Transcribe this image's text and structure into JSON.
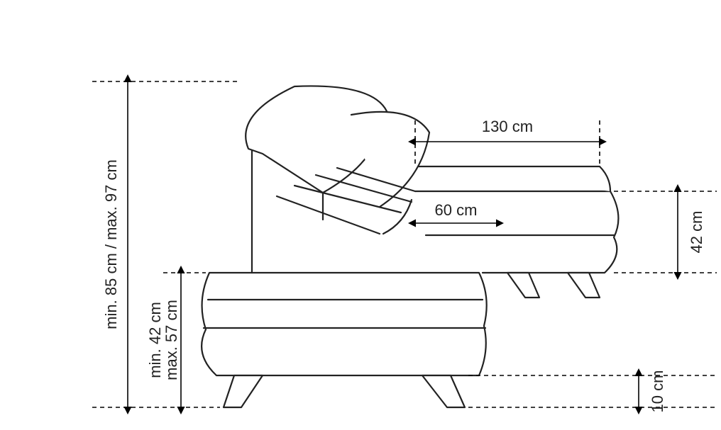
{
  "labels": {
    "length_top": "130 cm",
    "seat_depth": "60 cm",
    "seat_height_right": "42 cm",
    "leg_height": "10 cm",
    "seat_height_left_min": "min. 42 cm",
    "seat_height_left_max": "max. 57 cm",
    "total_height": "min. 85 cm  /  max. 97 cm"
  },
  "style": {
    "sofa_stroke": "#222222",
    "sofa_width": 2.2,
    "dim_stroke": "#000000",
    "dim_width": 1.6,
    "dash_pattern": "6 5",
    "label_size": 22,
    "label_color": "#222222"
  }
}
